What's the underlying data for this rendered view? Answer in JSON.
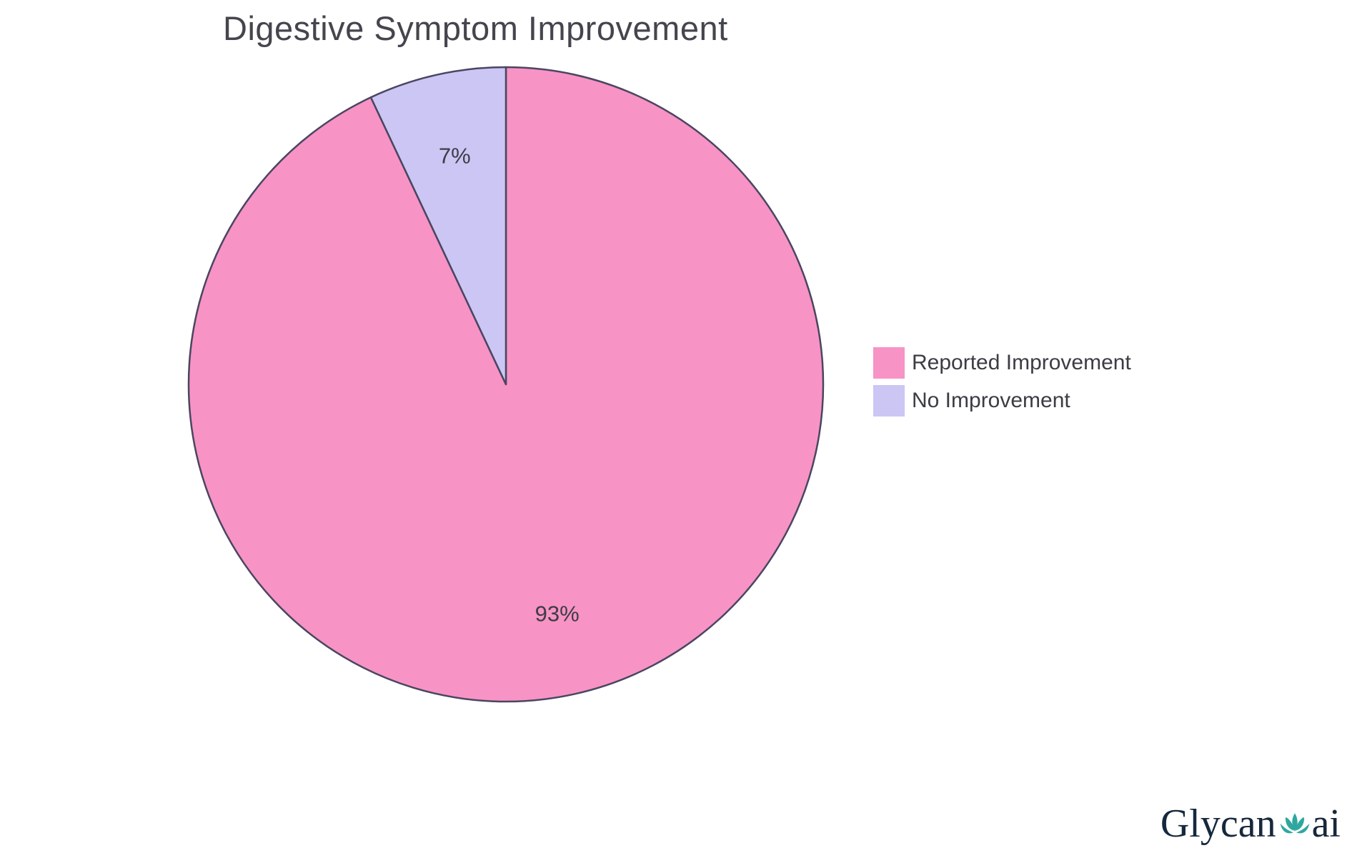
{
  "page": {
    "background": "#FFFFFF"
  },
  "chart": {
    "title": "Digestive Symptom Improvement"
  },
  "chart_data": {
    "type": "pie",
    "title": "Digestive Symptom Improvement",
    "labels": [
      "Reported Improvement",
      "No Improvement"
    ],
    "values": [
      93,
      7
    ],
    "slice_labels": [
      "93%",
      "7%"
    ],
    "colors": [
      "#F893C5",
      "#CBC6F4"
    ],
    "stroke_color": "#4A4661",
    "label_color": "#3d3d46",
    "start_angle_deg": 0,
    "direction": "clockwise",
    "legend_position": "right"
  },
  "legend": {
    "items": [
      {
        "label": "Reported Improvement",
        "color": "#F893C5"
      },
      {
        "label": "No Improvement",
        "color": "#CBC6F4"
      }
    ]
  },
  "logo": {
    "text_left": "Glycan",
    "text_right": "ai",
    "icon": "lotus-icon",
    "icon_color": "#2EA89E"
  }
}
